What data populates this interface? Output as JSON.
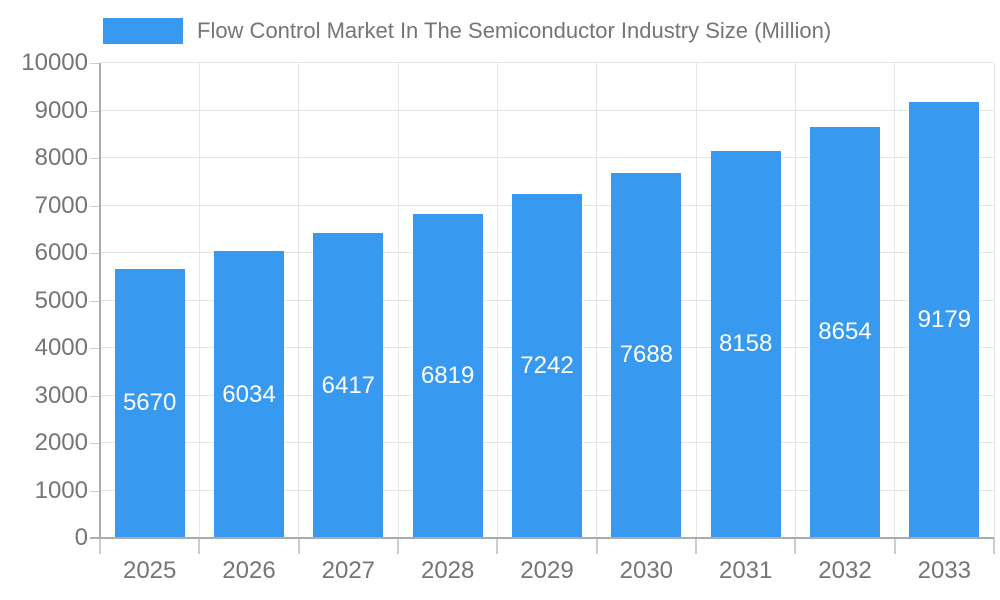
{
  "chart_data": {
    "type": "bar",
    "title": "Flow Control Market In The Semiconductor Industry Size (Million)",
    "categories": [
      "2025",
      "2026",
      "2027",
      "2028",
      "2029",
      "2030",
      "2031",
      "2032",
      "2033"
    ],
    "values": [
      5670,
      6034,
      6417,
      6819,
      7242,
      7688,
      8158,
      8654,
      9179
    ],
    "xlabel": "",
    "ylabel": "",
    "ylim": [
      0,
      10000
    ],
    "yticks": [
      0,
      1000,
      2000,
      3000,
      4000,
      5000,
      6000,
      7000,
      8000,
      9000,
      10000
    ],
    "grid": true,
    "legend_position": "top-left",
    "bar_value_labels": "inside-center",
    "colors": {
      "bar": "#3899F0",
      "grid": "#E6E6E6",
      "axis": "#ACACAC",
      "tick": "#CDCDCD",
      "text": "#757575",
      "bar_label": "#FFFFFF",
      "background": "#FFFFFF"
    }
  }
}
